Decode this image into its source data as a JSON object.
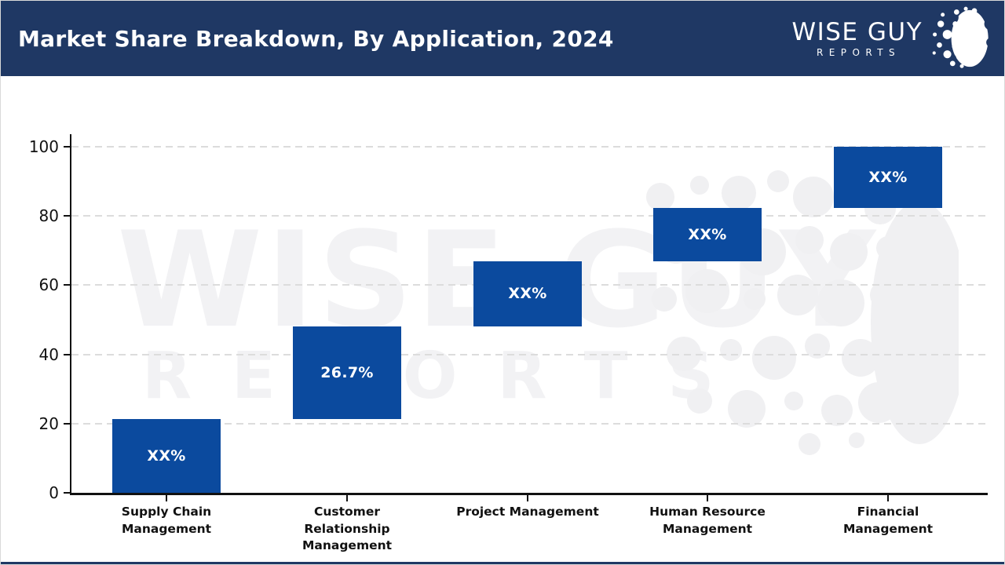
{
  "header": {
    "title": "Market Share Breakdown, By Application, 2024",
    "brand": {
      "line1": "WISE GUY",
      "line2": "REPORTS"
    }
  },
  "watermark": {
    "line1": "WISE GUY",
    "line2": "REPORTS"
  },
  "colors": {
    "header_bg": "#1f3864",
    "footer_bg": "#1f3864",
    "bar": "#0b4a9e",
    "gridline": "#dcdcdc",
    "axis": "#111111",
    "bar_label_text": "#ffffff",
    "title_text": "#ffffff",
    "watermark": "#f2f2f4"
  },
  "chart_data": {
    "type": "bar",
    "subtype": "waterfall",
    "title": "Market Share Breakdown, By Application, 2024",
    "xlabel": "",
    "ylabel": "",
    "ylim": [
      0,
      100
    ],
    "yticks": [
      0,
      20,
      40,
      60,
      80,
      100
    ],
    "grid": "dashed-horizontal",
    "legend": "none",
    "categories": [
      "Supply Chain Management",
      "Customer Relationship Management",
      "Project Management",
      "Human Resource Management",
      "Financial Management"
    ],
    "bars": [
      {
        "name": "Supply Chain Management",
        "label_lines": "Supply Chain\nManagement",
        "start": 0,
        "end": 21.3,
        "value_label": "XX%"
      },
      {
        "name": "Customer Relationship Management",
        "label_lines": "Customer\nRelationship\nManagement",
        "start": 21.3,
        "end": 48,
        "value_label": "26.7%"
      },
      {
        "name": "Project Management",
        "label_lines": "Project Management",
        "start": 48,
        "end": 67,
        "value_label": "XX%"
      },
      {
        "name": "Human Resource Management",
        "label_lines": "Human Resource\nManagement",
        "start": 67,
        "end": 82.2,
        "value_label": "XX%"
      },
      {
        "name": "Financial Management",
        "label_lines": "Financial\nManagement",
        "start": 82.2,
        "end": 100,
        "value_label": "XX%"
      }
    ]
  }
}
